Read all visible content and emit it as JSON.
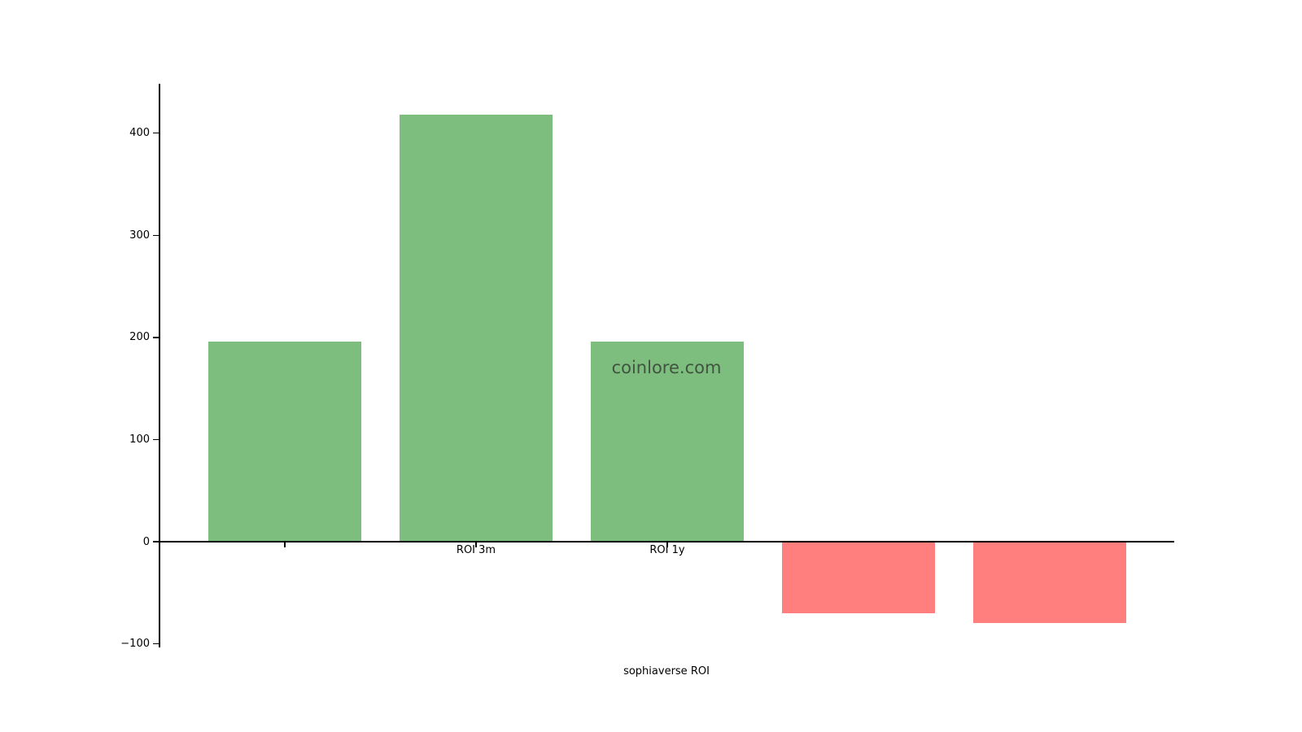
{
  "page": {
    "background_color": "#ffffff"
  },
  "watermark": {
    "text": "coinlore.com",
    "color": "#3c4b3c"
  },
  "chart_data": {
    "type": "bar",
    "title": "",
    "xlabel": "sophiaverse ROI",
    "ylabel": "",
    "categories": [
      "",
      "ROI 3m",
      "ROI 1y",
      "",
      ""
    ],
    "values": [
      196,
      418,
      196,
      -70,
      -80
    ],
    "series": [
      {
        "name": "sophiaverse ROI",
        "values": [
          196,
          418,
          196,
          -70,
          -80
        ]
      }
    ],
    "bar_colors": [
      "#7dbd7d",
      "#7dbd7d",
      "#7dbd7d",
      "#ff7f7f",
      "#ff7f7f"
    ],
    "positive_color": "#7dbd7d",
    "negative_color": "#ff7f7f",
    "yticks": [
      400,
      300,
      200,
      100,
      0,
      -100
    ],
    "ytick_labels": [
      "400",
      "300",
      "200",
      "100",
      "0",
      "−100"
    ],
    "ylim": [
      -104,
      448
    ],
    "grid": false,
    "legend_visible": false,
    "axis_color": "#000000",
    "text_color": "#000000",
    "notes": "three positive green bars, two negative red bars; x tick labels visible only for bars 2 and 3; ticks under negative bars hidden behind bars"
  }
}
